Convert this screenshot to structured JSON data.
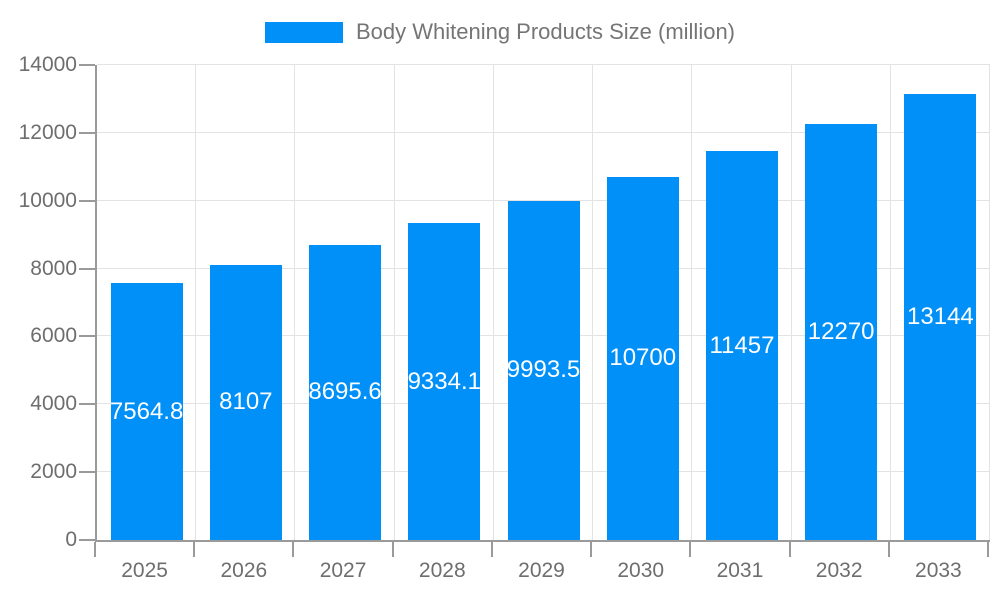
{
  "colors": {
    "bar": "#0090F8",
    "axis_line": "#9a9a9a",
    "grid": "#e3e3e3",
    "axis_text": "#6e6e6e",
    "legend_text": "#757575",
    "value_text": "#ffffff",
    "background": "#ffffff"
  },
  "chart_data": {
    "type": "bar",
    "title": "Body Whitening Products Size (million)",
    "legend": [
      "Body Whitening Products Size (million)"
    ],
    "legend_position": "top-center",
    "categories": [
      "2025",
      "2026",
      "2027",
      "2028",
      "2029",
      "2030",
      "2031",
      "2032",
      "2033"
    ],
    "values": [
      7564.8,
      8107,
      8695.6,
      9334.1,
      9993.5,
      10700,
      11457,
      12270,
      13144
    ],
    "value_labels": [
      "7564.8",
      "8107",
      "8695.6",
      "9334.1",
      "9993.5",
      "10700",
      "11457",
      "12270",
      "13144"
    ],
    "xlabel": "",
    "ylabel": "",
    "ylim": [
      0,
      14000
    ],
    "ytick_interval": 2000,
    "ytick_labels": [
      "0",
      "2000",
      "4000",
      "6000",
      "8000",
      "10000",
      "12000",
      "14000"
    ],
    "grid": true
  }
}
